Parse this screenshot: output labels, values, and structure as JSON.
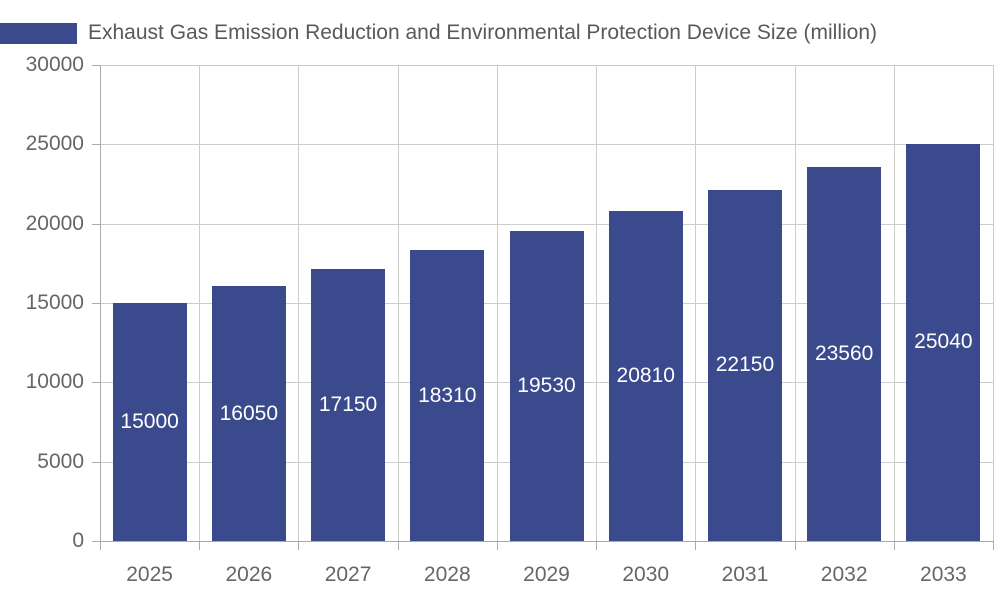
{
  "chart_data": {
    "type": "bar",
    "title": "Exhaust Gas Emission Reduction and Environmental Protection Device Size (million)",
    "categories": [
      "2025",
      "2026",
      "2027",
      "2028",
      "2029",
      "2030",
      "2031",
      "2032",
      "2033"
    ],
    "values": [
      15000,
      16050,
      17150,
      18310,
      19530,
      20810,
      22150,
      23560,
      25040
    ],
    "xlabel": "",
    "ylabel": "",
    "ylim": [
      0,
      30000
    ],
    "yticks": [
      0,
      5000,
      10000,
      15000,
      20000,
      25000,
      30000
    ],
    "grid": true,
    "legend_position": "top-left",
    "bar_value_labels": "inside-center"
  },
  "colors": {
    "bar": "#3A4A8C",
    "grid": "#cccccc",
    "axis": "#aaaaaa",
    "tick_text": "#666666",
    "title_text": "#595959",
    "bar_label_text": "#ffffff",
    "background": "#ffffff"
  }
}
